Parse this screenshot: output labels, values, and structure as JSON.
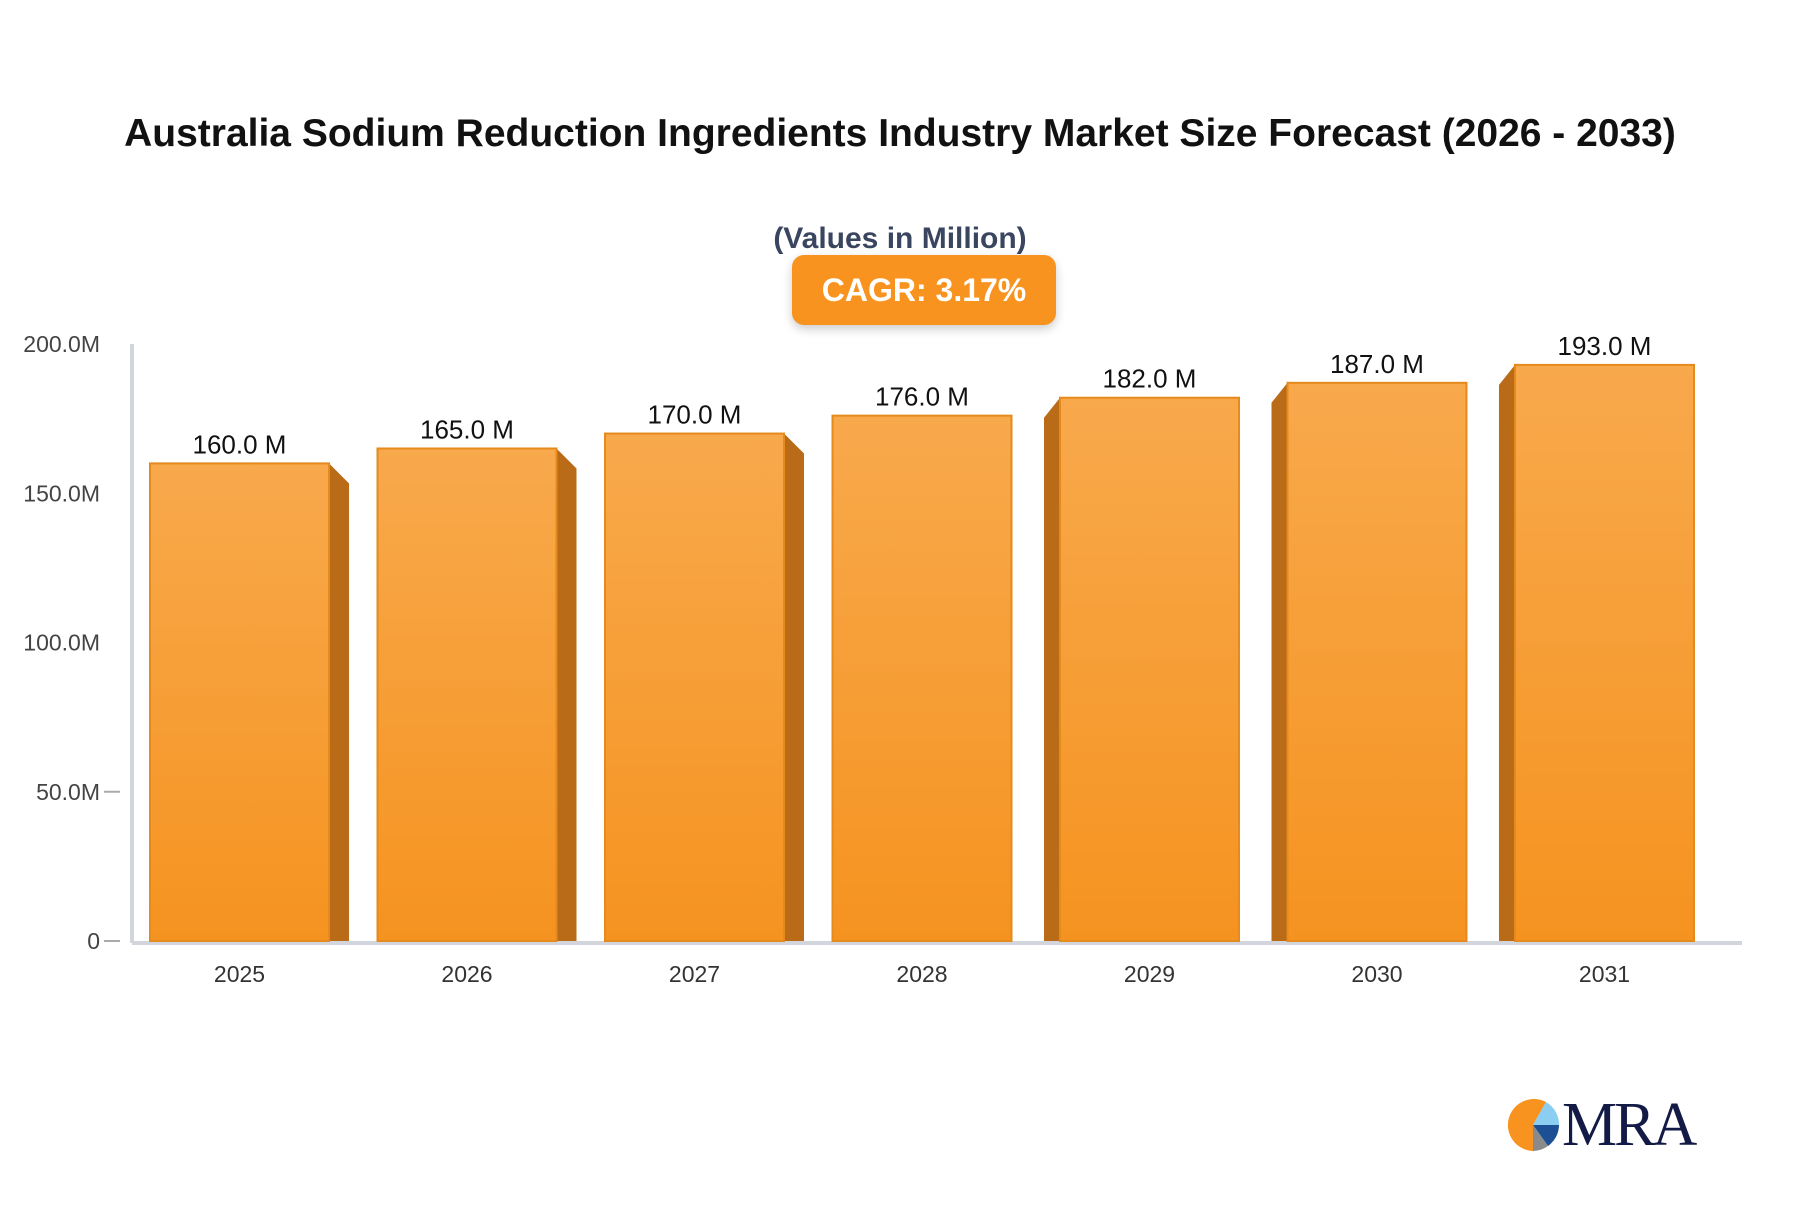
{
  "chart_data": {
    "type": "bar",
    "title": "Australia Sodium Reduction Ingredients Industry Market Size Forecast (2026 - 2033)",
    "subtitle": "(Values in Million)",
    "annotation": "CAGR: 3.17%",
    "categories": [
      "2025",
      "2026",
      "2027",
      "2028",
      "2029",
      "2030",
      "2031"
    ],
    "values": [
      160.0,
      165.0,
      170.0,
      176.0,
      182.0,
      187.0,
      193.0
    ],
    "data_labels": [
      "160.0 M",
      "165.0 M",
      "170.0 M",
      "176.0 M",
      "182.0 M",
      "187.0 M",
      "193.0 M"
    ],
    "yticks": [
      0,
      50,
      100,
      150,
      200
    ],
    "ytick_labels": [
      "0",
      "50.0M",
      "100.0M",
      "150.0M",
      "200.0M"
    ],
    "ylim": [
      0,
      200
    ],
    "xlabel": "",
    "ylabel": "",
    "grid": false,
    "bar_color": "#f7931e",
    "bar_side_color": "#b96b18"
  },
  "logo": {
    "text": "MRA"
  }
}
